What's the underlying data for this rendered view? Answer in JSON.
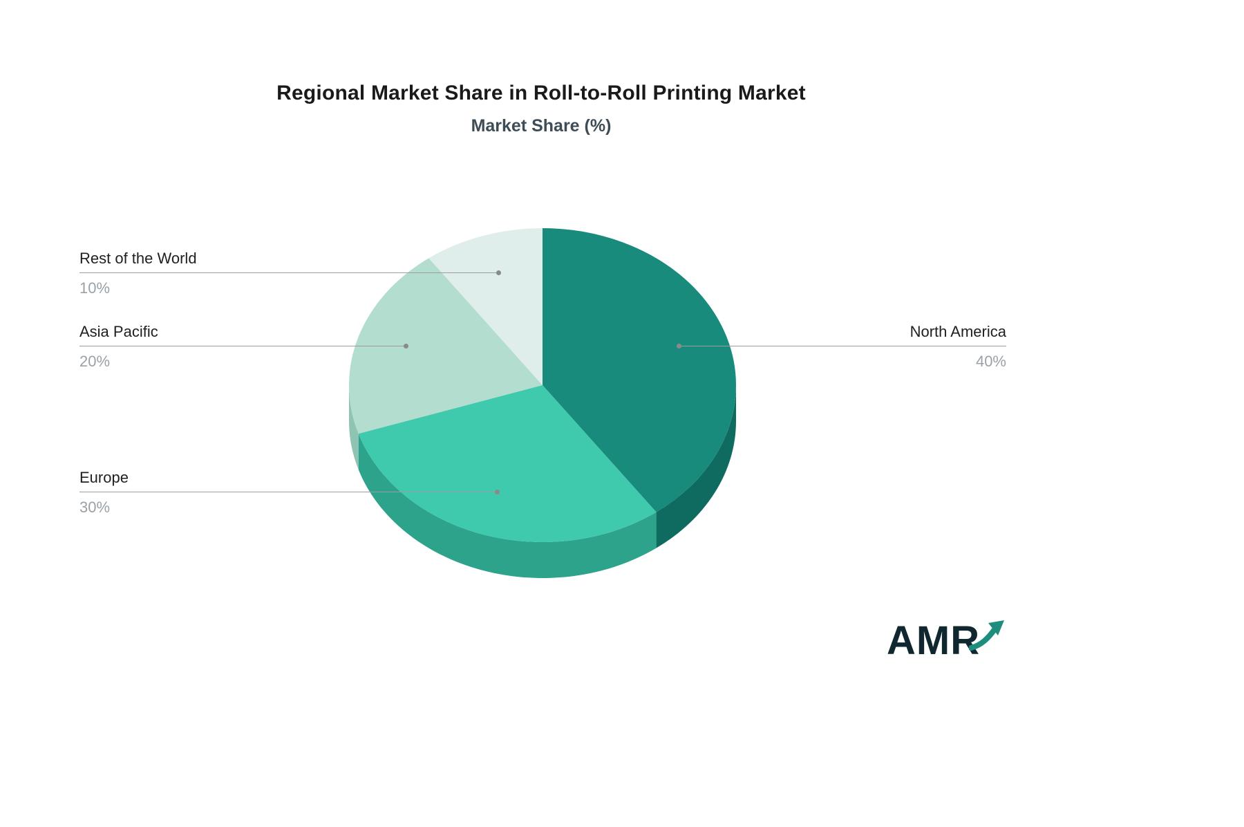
{
  "chart_data": {
    "type": "pie",
    "title": "Regional Market Share in Roll-to-Roll Printing Market",
    "subtitle": "Market Share (%)",
    "unit": "%",
    "start_angle_deg": -90,
    "direction": "clockwise",
    "style": "3d-pie",
    "legend_position": "none",
    "slices": [
      {
        "label": "North America",
        "value": 40,
        "color": "#198b7d",
        "side_color": "#0f6b60"
      },
      {
        "label": "Europe",
        "value": 30,
        "color": "#3fc9ad",
        "side_color": "#2da38c"
      },
      {
        "label": "Asia Pacific",
        "value": 20,
        "color": "#b2ddcf",
        "side_color": "#8fc4b4"
      },
      {
        "label": "Rest of the World",
        "value": 10,
        "color": "#dfeeea",
        "side_color": "#c2ddd6"
      }
    ]
  },
  "annotations": [
    {
      "label": "Rest of the World",
      "value_text": "10%"
    },
    {
      "label": "Asia Pacific",
      "value_text": "20%"
    },
    {
      "label": "Europe",
      "value_text": "30%"
    },
    {
      "label": "North America",
      "value_text": "40%"
    }
  ],
  "logo": {
    "text": "AMR",
    "arrow_color": "#1f8d7e"
  }
}
